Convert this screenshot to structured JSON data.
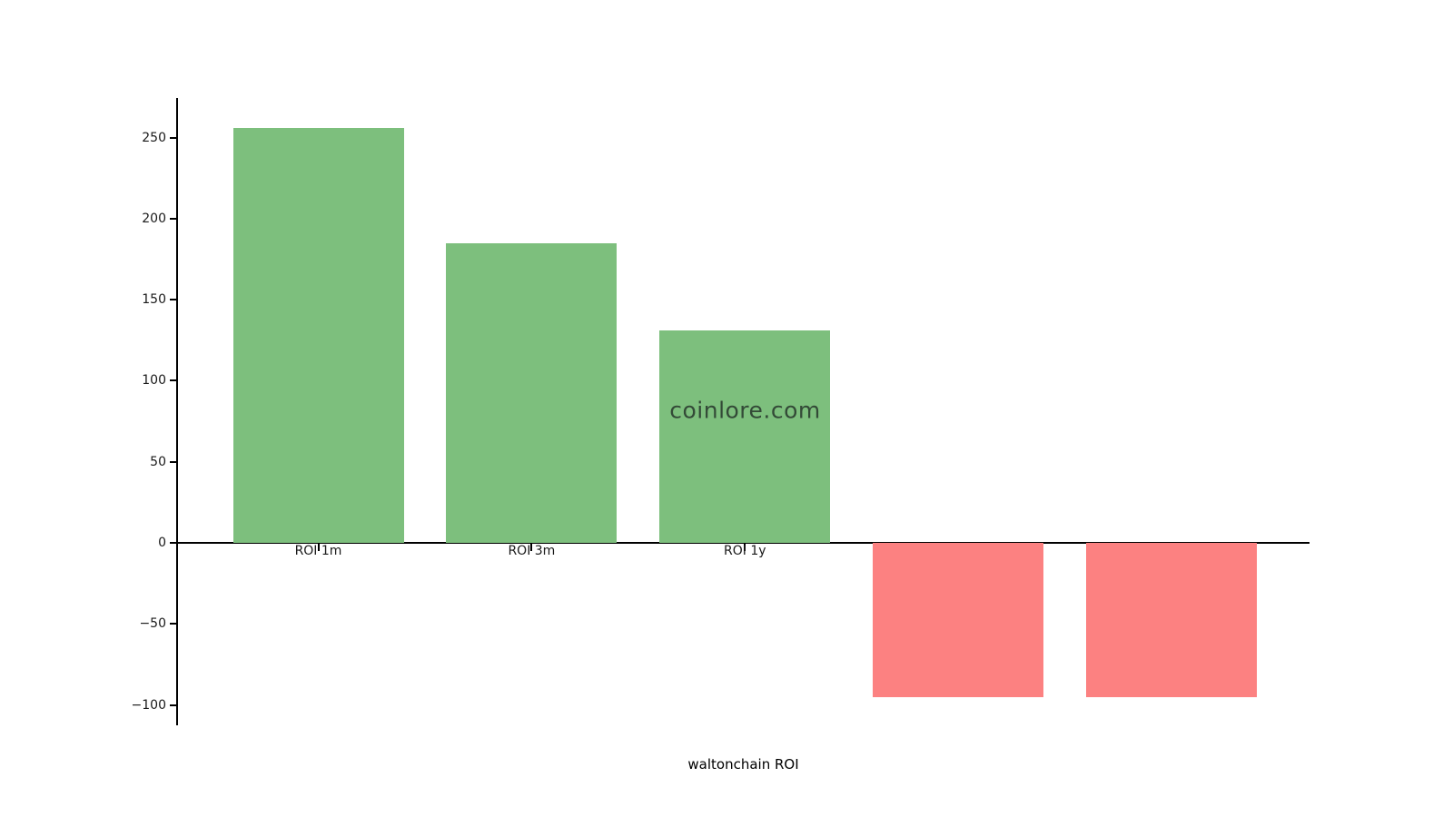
{
  "chart_data": {
    "type": "bar",
    "title": "",
    "xlabel": "waltonchain ROI",
    "ylabel": "",
    "categories": [
      "ROI 1m",
      "ROI 3m",
      "ROI 1y",
      "",
      ""
    ],
    "values": [
      256,
      185,
      131,
      -95,
      -95
    ],
    "bar_colors": [
      "#7dbf7d",
      "#7dbf7d",
      "#7dbf7d",
      "#fc8181",
      "#fc8181"
    ],
    "positive_color": "#7dbf7d",
    "negative_color": "#fc8181",
    "yticks": [
      250,
      200,
      150,
      100,
      50,
      0,
      -50,
      -100
    ],
    "ylim": [
      -112,
      273
    ],
    "xlim_note": "5 bars, uniform spacing, no labels visible under the two negative bars",
    "grid": false,
    "legend": "none",
    "watermark": "coinlore.com"
  }
}
